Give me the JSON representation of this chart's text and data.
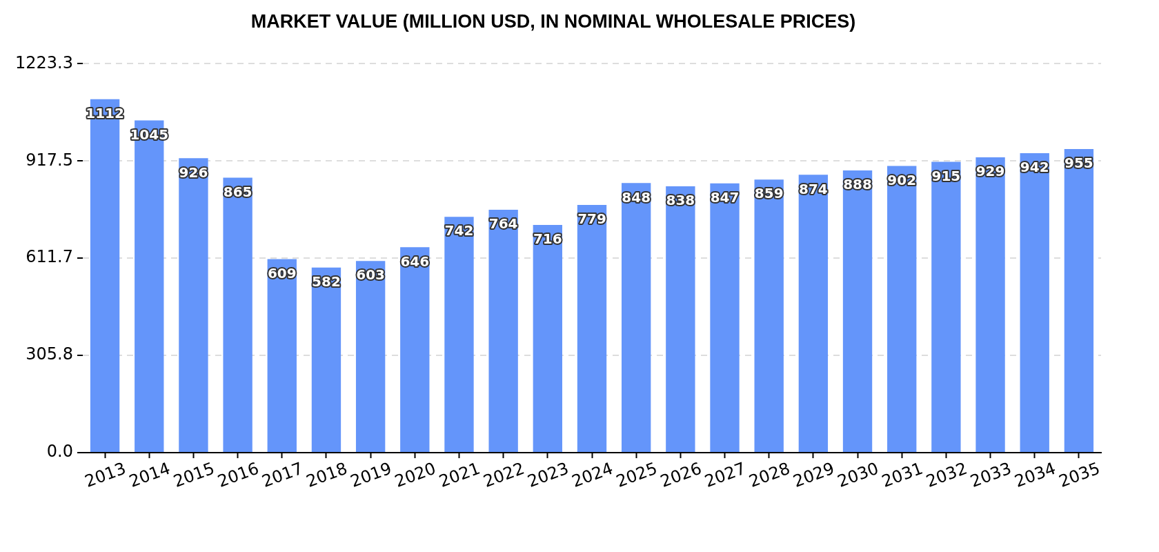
{
  "chart_data": {
    "type": "bar",
    "title": "MARKET VALUE (MILLION USD, IN NOMINAL WHOLESALE PRICES)",
    "categories": [
      "2013",
      "2014",
      "2015",
      "2016",
      "2017",
      "2018",
      "2019",
      "2020",
      "2021",
      "2022",
      "2023",
      "2024",
      "2025",
      "2026",
      "2027",
      "2028",
      "2029",
      "2030",
      "2031",
      "2032",
      "2033",
      "2034",
      "2035"
    ],
    "values": [
      1112,
      1045,
      926,
      865,
      609,
      582,
      603,
      646,
      742,
      764,
      716,
      779,
      848,
      838,
      847,
      859,
      874,
      888,
      902,
      915,
      929,
      942,
      955
    ],
    "color": "#6495fa",
    "ylim": [
      0,
      1223.3
    ],
    "yticks": [
      {
        "value": 0,
        "label": "0.0"
      },
      305.8,
      611.7,
      917.5,
      1223.3
    ],
    "grid": "y",
    "data_labels": true
  }
}
